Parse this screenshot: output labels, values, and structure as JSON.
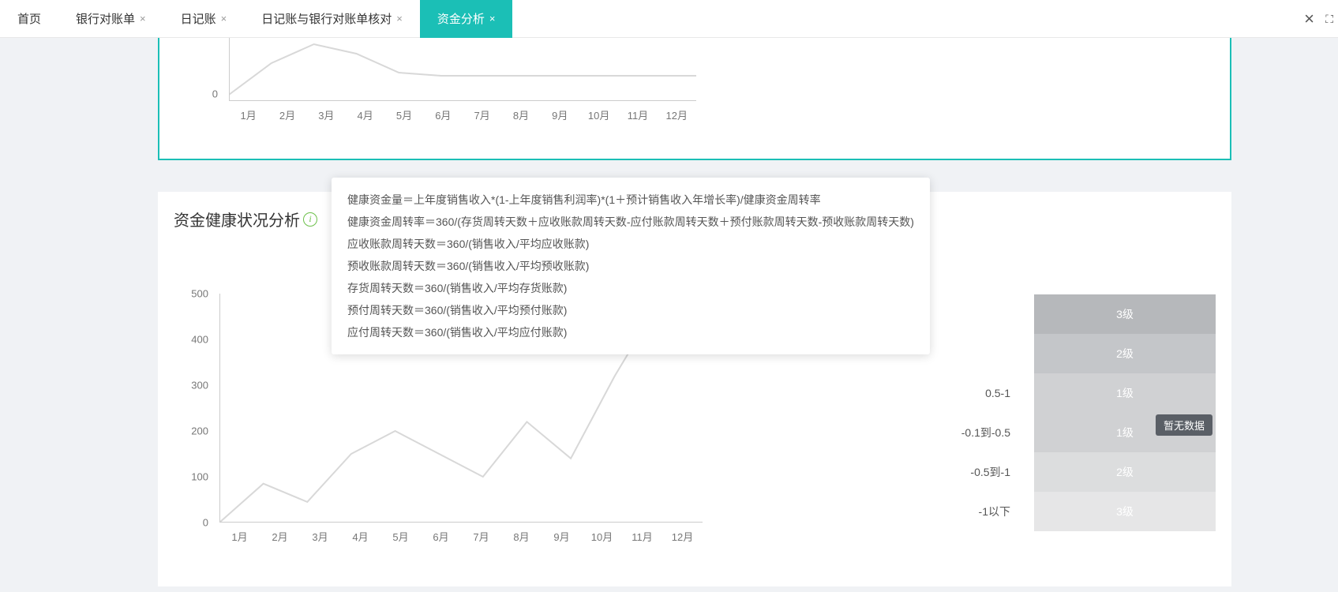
{
  "tabs": {
    "items": [
      {
        "label": "首页",
        "closable": false,
        "active": false
      },
      {
        "label": "银行对账单",
        "closable": true,
        "active": false
      },
      {
        "label": "日记账",
        "closable": true,
        "active": false
      },
      {
        "label": "日记账与银行对账单核对",
        "closable": true,
        "active": false
      },
      {
        "label": "资金分析",
        "closable": true,
        "active": true
      }
    ]
  },
  "upper_chart": {
    "x_labels": [
      "1月",
      "2月",
      "3月",
      "4月",
      "5月",
      "6月",
      "7月",
      "8月",
      "9月",
      "10月",
      "11月",
      "12月"
    ],
    "y_tick": "0",
    "line_color": "#d8d8d8",
    "axis_color": "#cccccc",
    "points_norm": [
      0.9,
      0.4,
      0.1,
      0.25,
      0.55,
      0.6,
      0.6,
      0.6,
      0.6,
      0.6,
      0.6,
      0.6
    ]
  },
  "section": {
    "title": "资金健康状况分析"
  },
  "tooltip_lines": [
    "健康资金量＝上年度销售收入*(1-上年度销售利润率)*(1＋预计销售收入年增长率)/健康资金周转率",
    "健康资金周转率＝360/(存货周转天数＋应收账款周转天数-应付账款周转天数＋预付账款周转天数-预收账款周转天数)",
    "应收账款周转天数＝360/(销售收入/平均应收账款)",
    "预收账款周转天数＝360/(销售收入/平均预收账款)",
    "存货周转天数＝360/(销售收入/平均存货账款)",
    "预付周转天数＝360/(销售收入/平均预付账款)",
    "应付周转天数＝360/(销售收入/平均应付账款)"
  ],
  "lower_chart": {
    "x_labels": [
      "1月",
      "2月",
      "3月",
      "4月",
      "5月",
      "6月",
      "7月",
      "8月",
      "9月",
      "10月",
      "11月",
      "12月"
    ],
    "y_ticks": [
      "0",
      "100",
      "200",
      "300",
      "400",
      "500"
    ],
    "ylim": [
      0,
      500
    ],
    "line_color": "#d8d8d8",
    "axis_color": "#cccccc",
    "values": [
      0,
      85,
      45,
      150,
      200,
      150,
      100,
      220,
      140,
      320,
      480,
      480
    ]
  },
  "side_table": {
    "rows": [
      {
        "label": "",
        "value": "3级",
        "bg": "#b6b8bb"
      },
      {
        "label": "",
        "value": "2级",
        "bg": "#c4c6c9"
      },
      {
        "label": "0.5-1",
        "value": "1级",
        "bg": "#d0d1d3"
      },
      {
        "label": "-0.1到-0.5",
        "value": "1级",
        "bg": "#d0d1d3"
      },
      {
        "label": "-0.5到-1",
        "value": "2级",
        "bg": "#dcddde"
      },
      {
        "label": "-1以下",
        "value": "3级",
        "bg": "#e6e6e7"
      }
    ],
    "no_data": "暂无数据"
  },
  "colors": {
    "accent": "#1bbfb6",
    "page_bg": "#f0f2f5"
  }
}
